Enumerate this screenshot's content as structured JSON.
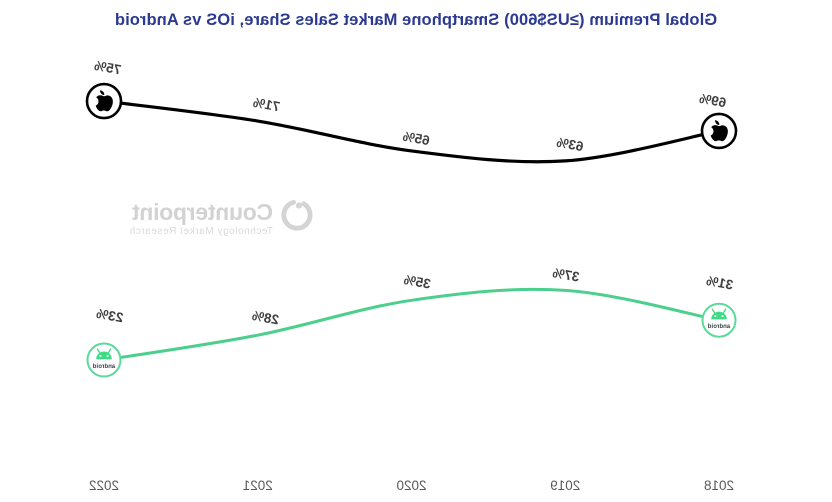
{
  "header": {
    "title": "Global Premium (≥US$600) Smartphone Market Sales Share, iOS vs Android",
    "title_color": "#2b3990"
  },
  "watermark": {
    "brand": "Counterpoint",
    "tagline": "Technology Market Research",
    "color": "#d2d2d2"
  },
  "chart_data": {
    "type": "line",
    "title": "Global Premium (≥US$600) Smartphone Market Sales Share, iOS vs Android",
    "categories": [
      "2018",
      "2019",
      "2020",
      "2021",
      "2022"
    ],
    "series": [
      {
        "name": "iOS",
        "marker": "apple",
        "color": "#000000",
        "values": [
          69,
          63,
          65,
          71,
          75
        ],
        "labels": [
          "69%",
          "63%",
          "65%",
          "71%",
          "75%"
        ]
      },
      {
        "name": "Android",
        "marker": "android",
        "color": "#4ccf8d",
        "values": [
          31,
          37,
          35,
          28,
          23
        ],
        "labels": [
          "31%",
          "37%",
          "35%",
          "28%",
          "23%"
        ]
      }
    ],
    "ylim": [
      0,
      100
    ],
    "xlabel": "",
    "ylabel": "",
    "grid": false,
    "legend": "none",
    "axis_text_color": "#595959",
    "data_label_color": "#3f3f3f",
    "android_marker_word": "android"
  }
}
